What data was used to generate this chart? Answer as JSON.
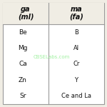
{
  "col1_header1": "ga",
  "col1_header2": "(ml)",
  "col2_header1": "ma",
  "col2_header2": "(fa)",
  "rows": [
    [
      "Be",
      "B"
    ],
    [
      "Mg",
      "Al"
    ],
    [
      "Ca",
      "Cr"
    ],
    [
      "Zn",
      "Y"
    ],
    [
      "Sr",
      "Ce and La"
    ]
  ],
  "bg_color": "#f0ede4",
  "border_color": "#999999",
  "text_color": "#111111",
  "watermark_text": "CBSELabs.com",
  "watermark_color": "#90ee90",
  "watermark_color2": "#c8a0d0"
}
